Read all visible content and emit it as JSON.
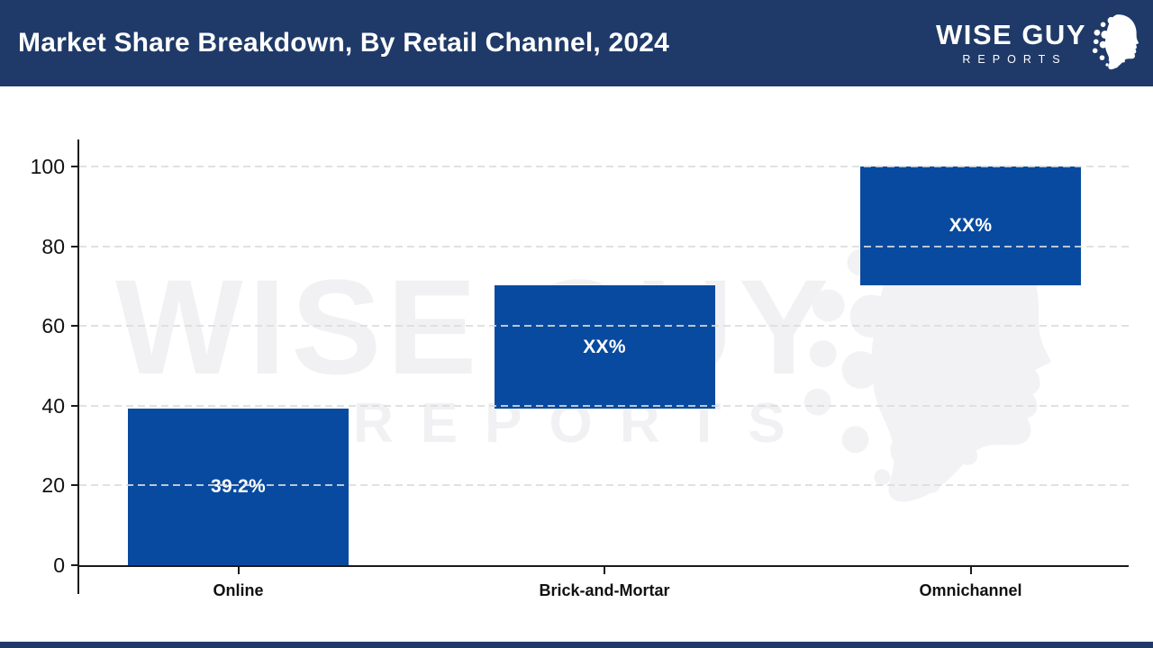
{
  "header": {
    "title": "Market Share Breakdown, By Retail Channel, 2024",
    "logo": {
      "line1": "WISE GUY",
      "line2": "REPORTS"
    }
  },
  "watermark": {
    "line1": "WISE GUY",
    "line2": "REPORTS"
  },
  "colors": {
    "header_bg": "#1f3a68",
    "footer_bg": "#1f3a68",
    "bar": "#084a9f",
    "grid": "#dcdcdc",
    "axis": "#1a1a1a",
    "tick_text": "#111111",
    "bar_label_text": "#ffffff",
    "watermark_text": "#f1f1f4",
    "watermark_face": "#f2f2f5"
  },
  "chart_data": {
    "type": "bar",
    "subtype": "floating-waterfall",
    "title": "Market Share Breakdown, By Retail Channel, 2024",
    "categories": [
      "Online",
      "Brick-and-Mortar",
      "Omnichannel"
    ],
    "bars": [
      {
        "category": "Online",
        "start": 0,
        "end": 39.2,
        "label": "39.2%"
      },
      {
        "category": "Brick-and-Mortar",
        "start": 39.2,
        "end": 70.2,
        "label": "XX%"
      },
      {
        "category": "Omnichannel",
        "start": 70.2,
        "end": 100,
        "label": "XX%"
      }
    ],
    "xlabel": "",
    "ylabel": "",
    "ylim": [
      0,
      100
    ],
    "yticks": [
      0,
      20,
      40,
      60,
      80,
      100
    ],
    "bar_color": "#084a9f",
    "grid": "horizontal-dashed",
    "legend": "none"
  }
}
